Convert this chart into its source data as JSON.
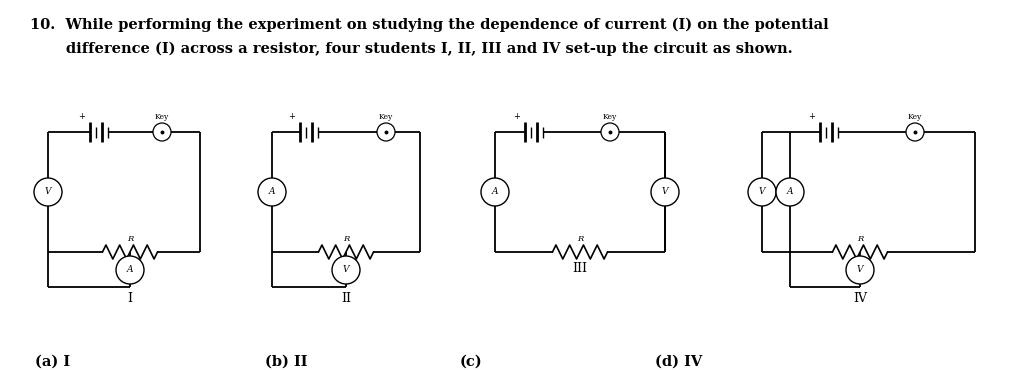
{
  "bg_color": "#ffffff",
  "text_color": "#000000",
  "title_line1": "10.  While performing the experiment on studying the dependence of current (I) on the potential",
  "title_line2": "       difference (I) across a resistor, four students I, II, III and IV set-up the circuit as shown.",
  "options": [
    "(a) I",
    "(b) II",
    "(c)",
    "(d) IV"
  ],
  "fig_width": 10.24,
  "fig_height": 3.7,
  "lw": 1.3,
  "meter_r": 0.018,
  "key_r": 0.011
}
